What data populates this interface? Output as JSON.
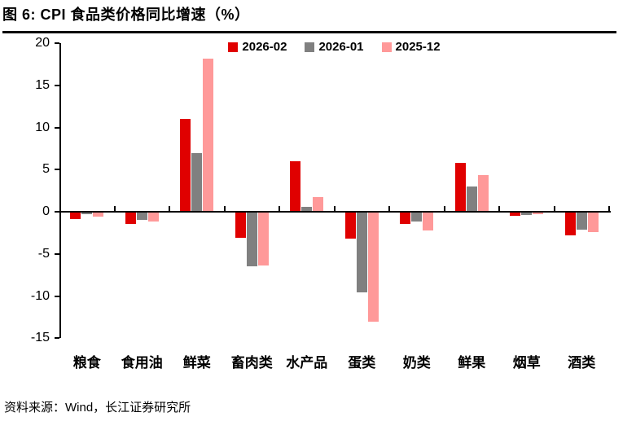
{
  "figure": {
    "title": "图 6: CPI 食品类价格同比增速（%）",
    "source": "资料来源：Wind，长江证券研究所"
  },
  "chart_data": {
    "type": "bar",
    "title": "CPI 食品类价格同比增速（%）",
    "categories": [
      "粮食",
      "食用油",
      "鲜菜",
      "畜肉类",
      "水产品",
      "蛋类",
      "奶类",
      "鲜果",
      "烟草",
      "酒类"
    ],
    "series": [
      {
        "name": "2026-02",
        "color": "#e00000",
        "values": [
          -0.8,
          -1.4,
          11.0,
          -3.0,
          6.0,
          -3.1,
          -1.4,
          5.8,
          -0.4,
          -2.7
        ]
      },
      {
        "name": "2026-01",
        "color": "#808080",
        "values": [
          -0.2,
          -0.9,
          7.0,
          -6.4,
          0.6,
          -9.5,
          -1.1,
          3.0,
          -0.3,
          -2.0
        ]
      },
      {
        "name": "2025-12",
        "color": "#ff9999",
        "values": [
          -0.5,
          -1.1,
          18.2,
          -6.3,
          1.7,
          -12.9,
          -2.1,
          4.3,
          -0.2,
          -2.3
        ]
      }
    ],
    "xlabel": "",
    "ylabel": "",
    "ylim": [
      -15,
      20
    ],
    "y_ticks": [
      20,
      15,
      10,
      5,
      0,
      -5,
      -10,
      -15
    ],
    "legend_position": "top-center",
    "grid": false,
    "axis_color": "#000000",
    "background_color": "#ffffff"
  }
}
